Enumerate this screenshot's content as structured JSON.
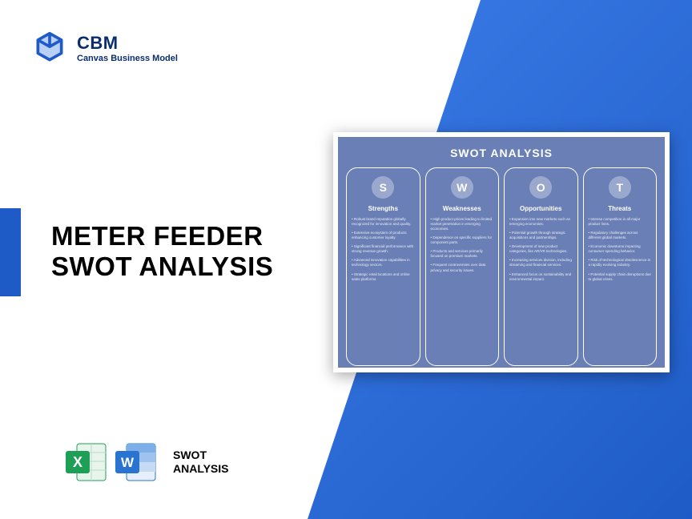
{
  "logo": {
    "title": "CBM",
    "subtitle": "Canvas Business Model",
    "icon_color": "#1e5bc6"
  },
  "accent_color": "#1e5bc6",
  "triangle_gradient": [
    "#3b7ce8",
    "#1e5bc6"
  ],
  "main_title_line1": "METER FEEDER",
  "main_title_line2": "SWOT ANALYSIS",
  "file_icons": {
    "excel_color": "#1d9f55",
    "word_color": "#2a74d1",
    "label_line1": "SWOT",
    "label_line2": "ANALYSIS"
  },
  "swot": {
    "title": "SWOT ANALYSIS",
    "card_bg": "#6a7fb5",
    "letter_bg": "rgba(255,255,255,0.32)",
    "columns": [
      {
        "letter": "S",
        "heading": "Strengths",
        "items": [
          "• Robust brand reputation globally recognized for innovation and quality.",
          "• Extensive ecosystem of products enhancing customer loyalty.",
          "• Significant financial performance with strong revenue growth.",
          "• Advanced innovation capabilities in technology sectors.",
          "• Strategic retail locations and online sales platforms."
        ]
      },
      {
        "letter": "W",
        "heading": "Weaknesses",
        "items": [
          "• High product prices leading to limited market penetration in emerging economies.",
          "• Dependence on specific suppliers for component parts.",
          "• Products and services primarily focused on premium markets.",
          "• Frequent controversies over data privacy and security issues."
        ]
      },
      {
        "letter": "O",
        "heading": "Opportunities",
        "items": [
          "• Expansion into new markets such as emerging economies.",
          "• Potential growth through strategic acquisitions and partnerships.",
          "• Development of new product categories, like AR/VR technologies.",
          "• Increasing services division, including streaming and financial services.",
          "• Enhanced focus on sustainability and environmental impact."
        ]
      },
      {
        "letter": "T",
        "heading": "Threats",
        "items": [
          "• Intense competition in all major product lines.",
          "• Regulatory challenges across different global markets.",
          "• Economic downturns impacting consumer spending behavior.",
          "• Risk of technological obsolescence in a rapidly evolving industry.",
          "• Potential supply chain disruptions due to global crises."
        ]
      }
    ]
  }
}
